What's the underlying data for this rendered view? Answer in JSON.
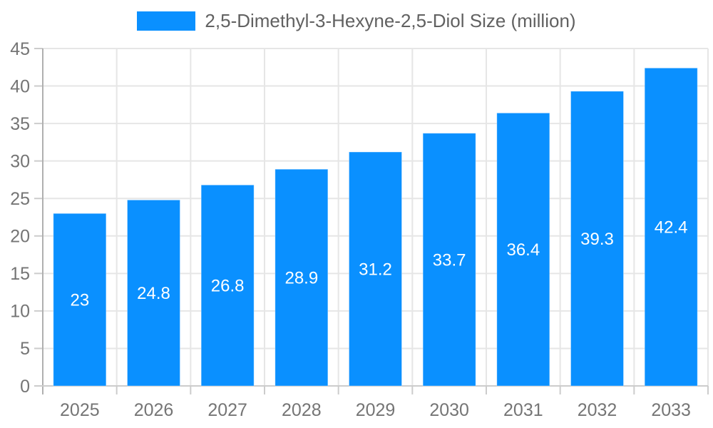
{
  "page": {
    "background": "#ffffff"
  },
  "legend": {
    "position": "top-center",
    "swatch_color": "#0a90ff"
  },
  "chart_data": {
    "type": "bar",
    "title": "2,5-Dimethyl-3-Hexyne-2,5-Diol Size (million)",
    "categories": [
      "2025",
      "2026",
      "2027",
      "2028",
      "2029",
      "2030",
      "2031",
      "2032",
      "2033"
    ],
    "values": [
      23,
      24.8,
      26.8,
      28.9,
      31.2,
      33.7,
      36.4,
      39.3,
      42.4
    ],
    "bar_labels": [
      "23",
      "24.8",
      "26.8",
      "28.9",
      "31.2",
      "33.7",
      "36.4",
      "39.3",
      "42.4"
    ],
    "xlabel": "",
    "ylabel": "",
    "ylim": [
      0,
      45
    ],
    "yticks": [
      0,
      5,
      10,
      15,
      20,
      25,
      30,
      35,
      40,
      45
    ],
    "grid": true,
    "legend_position": "top-center",
    "colors": {
      "bar": "#0a90ff",
      "bar_edge": "rgba(255,255,255,0.35)",
      "bar_label_text": "#ffffff",
      "axis_tick_label": "#757575",
      "title_text": "#616161",
      "gridline": "#e6e6e6",
      "y_axis_line": "#b0b0b0",
      "x_axis_line": "#cccccc"
    }
  }
}
